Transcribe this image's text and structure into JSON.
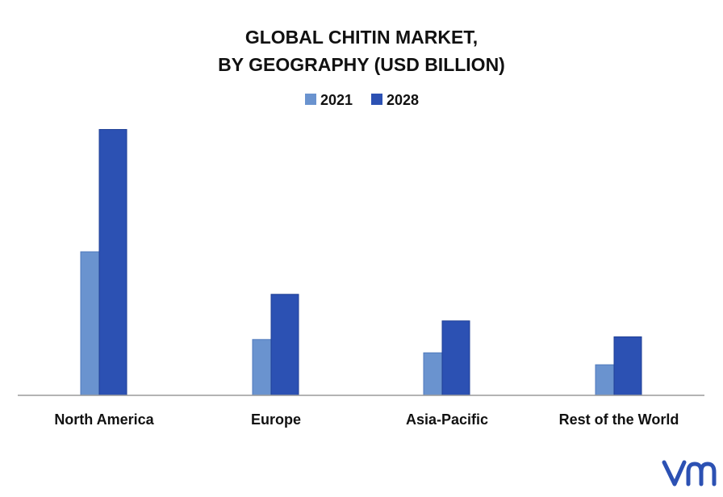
{
  "chart_data": {
    "type": "bar",
    "title_lines": [
      "GLOBAL CHITIN MARKET,",
      "BY GEOGRAPHY (USD BILLION)"
    ],
    "categories": [
      "North America",
      "Europe",
      "Asia-Pacific",
      "Rest of the World"
    ],
    "series": [
      {
        "name": "2021",
        "values": [
          0.54,
          0.21,
          0.16,
          0.115
        ],
        "color": "#6a93cf"
      },
      {
        "name": "2028",
        "values": [
          1.0,
          0.38,
          0.28,
          0.22
        ],
        "color": "#2c51b3"
      }
    ],
    "ylim": [
      0,
      1.05
    ],
    "grid": false,
    "legend_position": "top-center",
    "values_estimated_relative": true
  },
  "branding": {
    "logo": "vmr",
    "logo_color": "#2c51b3"
  }
}
